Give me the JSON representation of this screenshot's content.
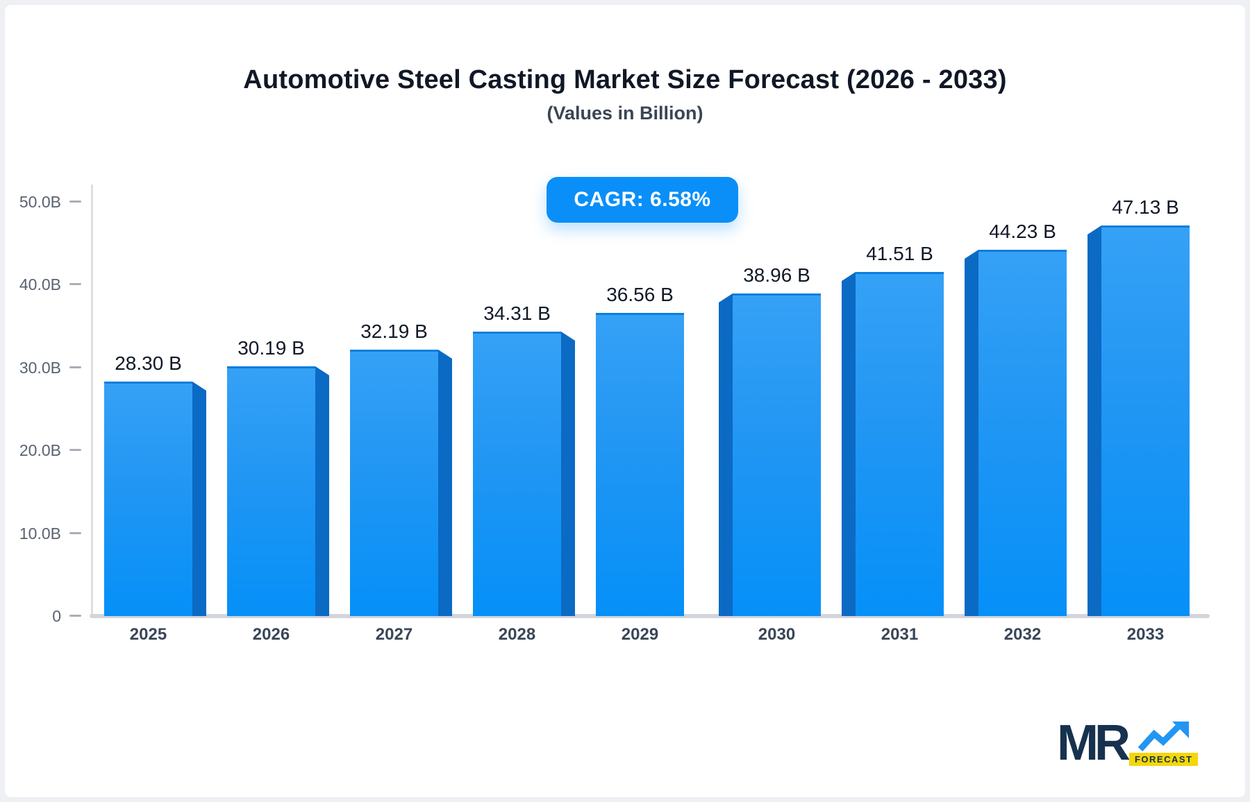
{
  "page": {
    "background": "#eef0f4",
    "card_background": "#ffffff"
  },
  "header": {
    "title": "Automotive Steel Casting Market Size Forecast (2026 - 2033)",
    "subtitle": "(Values in Billion)",
    "cagr_badge": "CAGR: 6.58%"
  },
  "chart_data": {
    "type": "bar",
    "title": "Automotive Steel Casting Market Size Forecast (2026 - 2033)",
    "subtitle": "(Values in Billion)",
    "annotation": "CAGR: 6.58%",
    "categories": [
      "2025",
      "2026",
      "2027",
      "2028",
      "2029",
      "2030",
      "2031",
      "2032",
      "2033"
    ],
    "values": [
      28.3,
      30.19,
      32.19,
      34.31,
      36.56,
      38.96,
      41.51,
      44.23,
      47.13
    ],
    "value_labels": [
      "28.30 B",
      "30.19 B",
      "32.19 B",
      "34.31 B",
      "36.56 B",
      "38.96 B",
      "41.51 B",
      "44.23 B",
      "47.13 B"
    ],
    "unit": "Billion",
    "ylim": [
      0,
      50
    ],
    "y_ticks": [
      {
        "value": 0,
        "label": "0"
      },
      {
        "value": 10,
        "label": "10.0B"
      },
      {
        "value": 20,
        "label": "20.0B"
      },
      {
        "value": 30,
        "label": "30.0B"
      },
      {
        "value": 40,
        "label": "40.0B"
      },
      {
        "value": 50,
        "label": "50.0B"
      }
    ],
    "grid": false,
    "legend": "none",
    "bar_color_top": "#35a1f6",
    "bar_color_bottom": "#0590f8",
    "bar_side_color": "#0b6ac4",
    "accent_color": "#0a8ff8"
  },
  "logo": {
    "text": "MR",
    "sub_text": "FORECAST",
    "navy": "#16324f",
    "blue": "#2196f3",
    "yellow": "#f6d60a"
  }
}
